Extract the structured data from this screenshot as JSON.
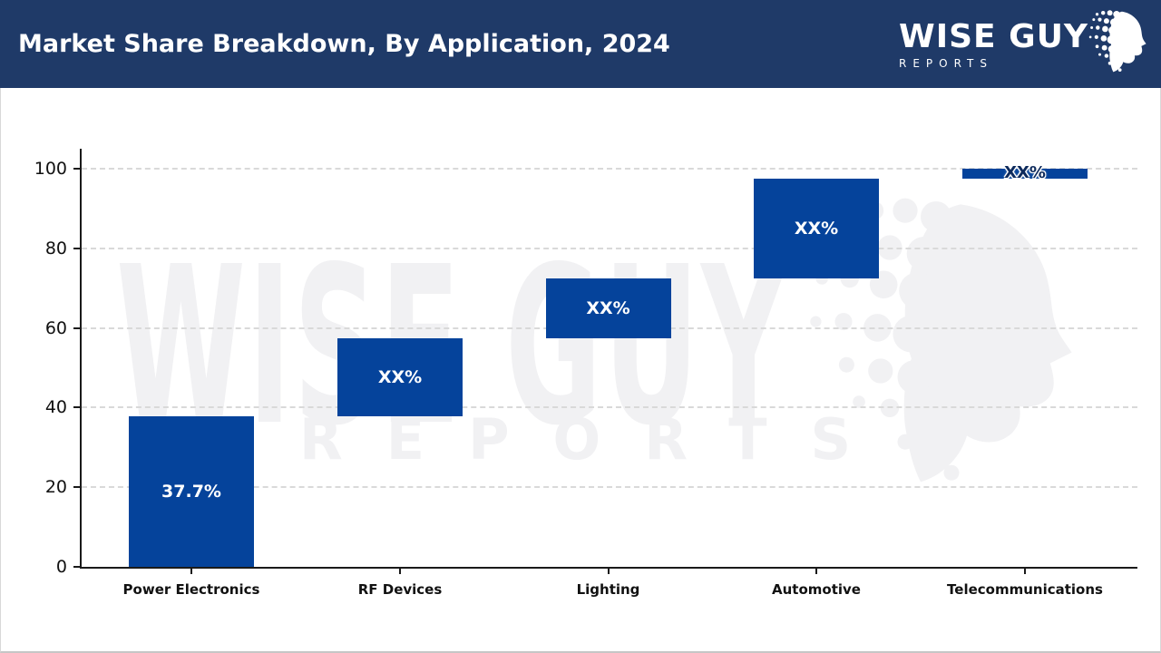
{
  "header": {
    "title": "Market Share Breakdown, By Application, 2024",
    "logo": {
      "brand": "WISE GUY",
      "sub": "REPORTS"
    },
    "bg_color": "#1f3a68"
  },
  "watermark": {
    "brand": "WISE GUY",
    "sub": "REPORTS"
  },
  "chart_data": {
    "type": "bar",
    "variant": "waterfall-breakdown",
    "title": "Market Share Breakdown, By Application, 2024",
    "unit": "%",
    "categories": [
      "Power Electronics",
      "RF Devices",
      "Lighting",
      "Automotive",
      "Telecommunications"
    ],
    "segments": [
      {
        "category": "Power Electronics",
        "start": 0,
        "end": 37.7,
        "value": 37.7,
        "label": "37.7%"
      },
      {
        "category": "RF Devices",
        "start": 37.7,
        "end": 57.5,
        "value": 19.8,
        "label": "XX%"
      },
      {
        "category": "Lighting",
        "start": 57.5,
        "end": 72.5,
        "value": 15.0,
        "label": "XX%"
      },
      {
        "category": "Automotive",
        "start": 72.5,
        "end": 97.5,
        "value": 25.0,
        "label": "XX%"
      },
      {
        "category": "Telecommunications",
        "start": 97.5,
        "end": 100,
        "value": 2.5,
        "label": "XX%"
      }
    ],
    "y_ticks": [
      0,
      20,
      40,
      60,
      80,
      100
    ],
    "ylim": [
      0,
      105
    ],
    "xlabel": "",
    "ylabel": "",
    "grid": "horizontal-dashed",
    "legend": "none",
    "colors": {
      "bar": "#05439b",
      "label_inside": "#ffffff",
      "label_outside": "#0d2a5c",
      "axis": "#1a1a1a",
      "gridline": "#d9d9d9",
      "header_bg": "#1f3a68",
      "watermark": "#f1f1f3"
    }
  }
}
